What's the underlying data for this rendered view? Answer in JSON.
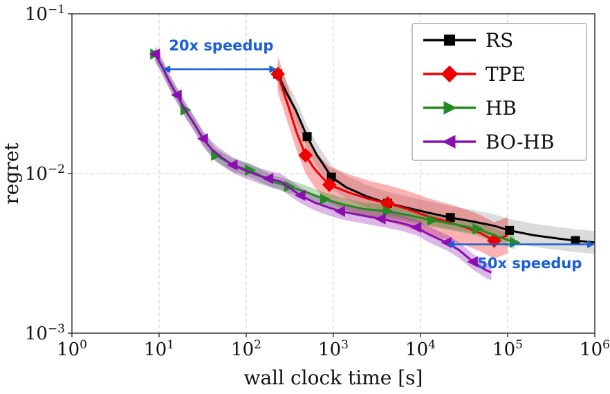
{
  "chart_data": {
    "type": "line",
    "title": "",
    "xlabel": "wall clock time [s]",
    "ylabel": "regret",
    "x_scale": "log",
    "y_scale": "log",
    "xlim": [
      1,
      1000000
    ],
    "ylim": [
      0.001,
      0.1
    ],
    "x_ticks_exponents": [
      0,
      1,
      2,
      3,
      4,
      5,
      6
    ],
    "y_ticks_exponents": [
      -1,
      -2,
      -3
    ],
    "grid": "dashed",
    "legend_position": "upper right",
    "series": [
      {
        "name": "RS",
        "color": "#000000",
        "band_color": "#888888",
        "band_factor": 1.18,
        "band_opacity": 0.3,
        "marker": "square",
        "marker_size": 13,
        "line": [
          [
            230,
            0.042
          ],
          [
            290,
            0.032
          ],
          [
            370,
            0.025
          ],
          [
            500,
            0.017
          ],
          [
            650,
            0.013
          ],
          [
            800,
            0.011
          ],
          [
            950,
            0.0095
          ],
          [
            1400,
            0.0082
          ],
          [
            2400,
            0.0072
          ],
          [
            4200,
            0.0065
          ],
          [
            7000,
            0.0061
          ],
          [
            12000,
            0.0057
          ],
          [
            22000,
            0.0053
          ],
          [
            40000,
            0.005
          ],
          [
            70000,
            0.0047
          ],
          [
            105000,
            0.0044
          ],
          [
            200000,
            0.0041
          ],
          [
            400000,
            0.0039
          ],
          [
            600000,
            0.0038
          ],
          [
            1000000,
            0.0037
          ]
        ],
        "markers": [
          [
            230,
            0.042
          ],
          [
            500,
            0.017
          ],
          [
            950,
            0.0095
          ],
          [
            4200,
            0.0065
          ],
          [
            22000,
            0.0053
          ],
          [
            105000,
            0.0044
          ],
          [
            600000,
            0.0038
          ]
        ]
      },
      {
        "name": "TPE",
        "color": "#ee0000",
        "band_color": "#ee0000",
        "band_factor": 1.3,
        "band_opacity": 0.3,
        "marker": "diamond",
        "marker_size": 16,
        "line": [
          [
            230,
            0.042
          ],
          [
            300,
            0.027
          ],
          [
            380,
            0.018
          ],
          [
            480,
            0.013
          ],
          [
            600,
            0.0108
          ],
          [
            750,
            0.0094
          ],
          [
            900,
            0.0085
          ],
          [
            1500,
            0.0076
          ],
          [
            2600,
            0.0069
          ],
          [
            4200,
            0.0065
          ],
          [
            7000,
            0.006
          ],
          [
            12000,
            0.0054
          ],
          [
            20000,
            0.005
          ],
          [
            33000,
            0.0046
          ],
          [
            50000,
            0.0042
          ],
          [
            70000,
            0.0038
          ],
          [
            100000,
            0.0041
          ]
        ],
        "markers": [
          [
            230,
            0.042
          ],
          [
            480,
            0.013
          ],
          [
            900,
            0.0085
          ],
          [
            4200,
            0.0065
          ],
          [
            70000,
            0.0038
          ]
        ]
      },
      {
        "name": "HB",
        "color": "#228b22",
        "band_color": "#228b22",
        "band_factor": 1.1,
        "band_opacity": 0.3,
        "marker": "triangle-right",
        "marker_size": 14,
        "line": [
          [
            9,
            0.056
          ],
          [
            11,
            0.046
          ],
          [
            13,
            0.038
          ],
          [
            16,
            0.031
          ],
          [
            20,
            0.025
          ],
          [
            26,
            0.02
          ],
          [
            32,
            0.0165
          ],
          [
            40,
            0.0142
          ],
          [
            45,
            0.013
          ],
          [
            55,
            0.0122
          ],
          [
            70,
            0.0113
          ],
          [
            90,
            0.0108
          ],
          [
            110,
            0.0105
          ],
          [
            150,
            0.0096
          ],
          [
            200,
            0.0089
          ],
          [
            310,
            0.0083
          ],
          [
            500,
            0.0076
          ],
          [
            800,
            0.0069
          ],
          [
            1300,
            0.0064
          ],
          [
            2200,
            0.006
          ],
          [
            4200,
            0.0058
          ],
          [
            7000,
            0.0055
          ],
          [
            13600,
            0.0051
          ],
          [
            25000,
            0.0048
          ],
          [
            45000,
            0.0045
          ],
          [
            80000,
            0.004
          ],
          [
            120000,
            0.0037
          ]
        ],
        "markers": [
          [
            9,
            0.056
          ],
          [
            20,
            0.025
          ],
          [
            45,
            0.013
          ],
          [
            110,
            0.0105
          ],
          [
            310,
            0.0083
          ],
          [
            800,
            0.0069
          ],
          [
            4200,
            0.0058
          ],
          [
            13600,
            0.0051
          ],
          [
            45000,
            0.0045
          ],
          [
            120000,
            0.0037
          ]
        ]
      },
      {
        "name": "BO-HB",
        "color": "#8b0fb0",
        "band_color": "#8b0fb0",
        "band_factor": 1.12,
        "band_opacity": 0.3,
        "marker": "triangle-left",
        "marker_size": 14,
        "line": [
          [
            9,
            0.056
          ],
          [
            11,
            0.046
          ],
          [
            13,
            0.038
          ],
          [
            16,
            0.031
          ],
          [
            20,
            0.025
          ],
          [
            26,
            0.02
          ],
          [
            32,
            0.0165
          ],
          [
            40,
            0.0142
          ],
          [
            50,
            0.0128
          ],
          [
            70,
            0.0113
          ],
          [
            100,
            0.0104
          ],
          [
            140,
            0.0097
          ],
          [
            180,
            0.0093
          ],
          [
            250,
            0.0089
          ],
          [
            350,
            0.0078
          ],
          [
            420,
            0.0073
          ],
          [
            600,
            0.0066
          ],
          [
            900,
            0.0061
          ],
          [
            1200,
            0.0058
          ],
          [
            2000,
            0.0055
          ],
          [
            3500,
            0.0052
          ],
          [
            6000,
            0.0049
          ],
          [
            9000,
            0.0046
          ],
          [
            12000,
            0.0042
          ],
          [
            16000,
            0.0039
          ],
          [
            20000,
            0.0037
          ],
          [
            28000,
            0.0033
          ],
          [
            40000,
            0.0028
          ],
          [
            55000,
            0.0025
          ],
          [
            65000,
            0.0024
          ]
        ],
        "markers": [
          [
            9,
            0.056
          ],
          [
            16,
            0.031
          ],
          [
            32,
            0.0165
          ],
          [
            70,
            0.0113
          ],
          [
            180,
            0.0093
          ],
          [
            420,
            0.0073
          ],
          [
            1200,
            0.0058
          ],
          [
            3500,
            0.0052
          ],
          [
            9000,
            0.0046
          ],
          [
            20000,
            0.0037
          ],
          [
            40000,
            0.0028
          ]
        ]
      }
    ],
    "annotations": [
      {
        "text": "20x speedup",
        "color": "#1a5fd4",
        "arrow": {
          "x1": 11,
          "x2": 225,
          "y": 0.045
        },
        "text_pos": {
          "x": 13,
          "y": 0.059
        }
      },
      {
        "text": "50x speedup",
        "color": "#1a5fd4",
        "arrow": {
          "x1": 20000,
          "x2": 1000000,
          "y": 0.0036
        },
        "text_pos": {
          "x": 45000,
          "y": 0.00255
        }
      }
    ]
  }
}
